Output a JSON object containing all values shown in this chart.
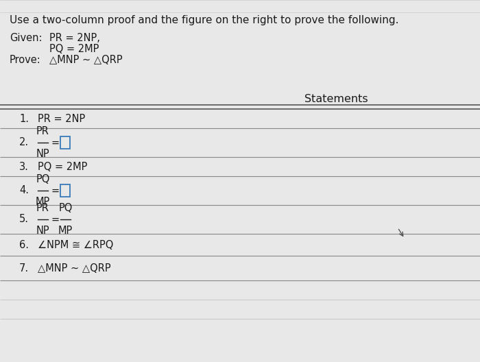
{
  "background_color": "#d8d8d8",
  "paper_color": "#e8e8e8",
  "header_text": "Use a two-column proof and the figure on the right to prove the following.",
  "given_label": "Given:",
  "given_line1": "PR = 2NP,",
  "given_line2": "PQ = 2MP",
  "prove_label": "Prove:",
  "prove_text": "△MNP ~ △QRP",
  "col_header": "Statements",
  "text_color": "#1a1a1a",
  "line_color": "#888888",
  "line_color_bold": "#555555",
  "font_size": 10.5,
  "col_header_fontsize": 11.5,
  "header_fontsize": 11.0
}
